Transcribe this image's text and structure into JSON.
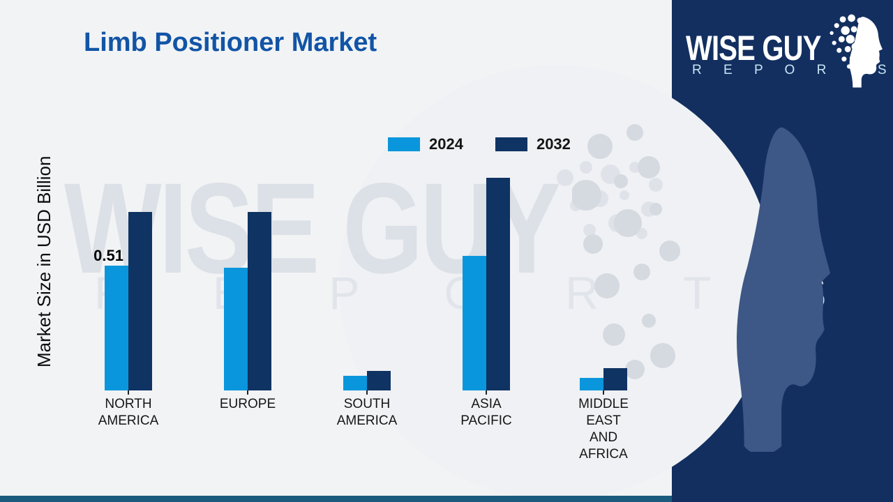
{
  "title": "Limb Positioner Market",
  "brand": {
    "line1": "WISE GUY",
    "line2": "R E P O R T S"
  },
  "watermark": {
    "line1": "WISE GUY",
    "line2": "R E P O R T S"
  },
  "colors": {
    "title": "#1254a6",
    "bar_2024": "#0a96dc",
    "bar_2032": "#0f3363",
    "band": "#132f60",
    "footer_strip": "#1a5b7e"
  },
  "legend": [
    {
      "label": "2024",
      "color": "#0a96dc"
    },
    {
      "label": "2032",
      "color": "#0f3363"
    }
  ],
  "chart_data": {
    "type": "bar",
    "title": "Limb Positioner Market",
    "xlabel": "",
    "ylabel": "Market Size in USD Billion",
    "ylim": [
      0,
      0.95
    ],
    "grid": false,
    "legend_position": "top-center",
    "categories": [
      "NORTH AMERICA",
      "EUROPE",
      "SOUTH AMERICA",
      "ASIA PACIFIC",
      "MIDDLE EAST AND AFRICA"
    ],
    "category_lines": [
      [
        "NORTH",
        "AMERICA"
      ],
      [
        "EUROPE"
      ],
      [
        "SOUTH",
        "AMERICA"
      ],
      [
        "ASIA",
        "PACIFIC"
      ],
      [
        "MIDDLE",
        "EAST",
        "AND",
        "AFRICA"
      ]
    ],
    "series": [
      {
        "name": "2024",
        "values": [
          0.51,
          0.5,
          0.06,
          0.55,
          0.05
        ]
      },
      {
        "name": "2032",
        "values": [
          0.73,
          0.73,
          0.08,
          0.87,
          0.09
        ]
      }
    ],
    "data_labels": [
      {
        "series_index": 0,
        "category_index": 0,
        "text": "0.51"
      }
    ]
  }
}
